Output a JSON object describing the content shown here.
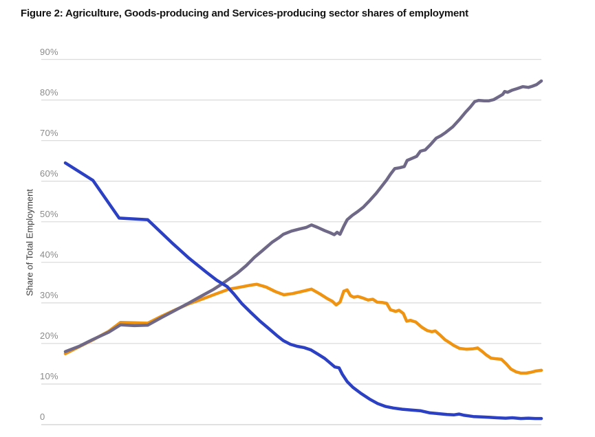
{
  "page": {
    "title": "Figure 2: Agriculture, Goods-producing and Services-producing sector shares of employment"
  },
  "colors": {
    "background": "#ffffff",
    "title_text": "#131313",
    "axis_title_text": "#3b3b3b",
    "tick_label_text": "#8a8a8a",
    "gridline": "#dcdcdc",
    "baseline": "#cfcfcf",
    "agriculture_line": "#2b40c2",
    "goods_line": "#ef9412",
    "services_line": "#6f6887"
  },
  "chart_data": {
    "type": "line",
    "title": "Figure 2: Agriculture, Goods-producing and Services-producing sector shares of employment",
    "xlabel": "",
    "ylabel": "Share of Total Employment",
    "ylim": [
      0,
      90
    ],
    "ytick_values": [
      90,
      80,
      70,
      60,
      50,
      40,
      30,
      20,
      10,
      0
    ],
    "ytick_labels": [
      "90%",
      "80%",
      "70%",
      "60%",
      "50%",
      "40%",
      "30%",
      "20%",
      "10%",
      "0"
    ],
    "x_tick_labels": [],
    "grid": "horizontal-only",
    "legend_position": "none",
    "x_unit": "fraction-of-timespan (no x-axis labels shown in figure)",
    "y_unit": "percent share of total employment",
    "series": [
      {
        "name": "Agriculture",
        "color": "#2b40c2",
        "start_value_pct": 64.5,
        "end_value_pct": 1.5,
        "points": [
          [
            0,
            64.5
          ],
          [
            0.058,
            60.2
          ],
          [
            0.113,
            50.9
          ],
          [
            0.173,
            50.5
          ],
          [
            0.224,
            44.8
          ],
          [
            0.26,
            41
          ],
          [
            0.296,
            37.6
          ],
          [
            0.318,
            35.6
          ],
          [
            0.34,
            34
          ],
          [
            0.354,
            32.2
          ],
          [
            0.371,
            29.8
          ],
          [
            0.39,
            27.6
          ],
          [
            0.409,
            25.5
          ],
          [
            0.426,
            23.8
          ],
          [
            0.444,
            22
          ],
          [
            0.458,
            20.7
          ],
          [
            0.473,
            19.8
          ],
          [
            0.487,
            19.3
          ],
          [
            0.501,
            19
          ],
          [
            0.516,
            18.4
          ],
          [
            0.53,
            17.4
          ],
          [
            0.545,
            16.3
          ],
          [
            0.556,
            15.2
          ],
          [
            0.566,
            14.2
          ],
          [
            0.575,
            14
          ],
          [
            0.582,
            12.4
          ],
          [
            0.592,
            10.6
          ],
          [
            0.604,
            9.2
          ],
          [
            0.621,
            7.7
          ],
          [
            0.639,
            6.3
          ],
          [
            0.656,
            5.2
          ],
          [
            0.672,
            4.5
          ],
          [
            0.689,
            4.1
          ],
          [
            0.708,
            3.8
          ],
          [
            0.727,
            3.6
          ],
          [
            0.747,
            3.4
          ],
          [
            0.766,
            2.9
          ],
          [
            0.785,
            2.7
          ],
          [
            0.802,
            2.5
          ],
          [
            0.816,
            2.4
          ],
          [
            0.827,
            2.6
          ],
          [
            0.838,
            2.3
          ],
          [
            0.857,
            2
          ],
          [
            0.874,
            1.9
          ],
          [
            0.892,
            1.8
          ],
          [
            0.906,
            1.7
          ],
          [
            0.925,
            1.6
          ],
          [
            0.939,
            1.7
          ],
          [
            0.957,
            1.5
          ],
          [
            0.973,
            1.6
          ],
          [
            0.987,
            1.5
          ],
          [
            1,
            1.5
          ]
        ]
      },
      {
        "name": "Goods-producing",
        "color": "#ef9412",
        "start_value_pct": 17.5,
        "end_value_pct": 13.4,
        "points": [
          [
            0,
            17.5
          ],
          [
            0.029,
            19.2
          ],
          [
            0.058,
            20.9
          ],
          [
            0.091,
            23
          ],
          [
            0.116,
            25.2
          ],
          [
            0.145,
            25.1
          ],
          [
            0.173,
            25
          ],
          [
            0.202,
            26.7
          ],
          [
            0.231,
            28.3
          ],
          [
            0.26,
            29.8
          ],
          [
            0.289,
            31
          ],
          [
            0.318,
            32.3
          ],
          [
            0.344,
            33.4
          ],
          [
            0.368,
            33.9
          ],
          [
            0.386,
            34.3
          ],
          [
            0.402,
            34.6
          ],
          [
            0.422,
            33.9
          ],
          [
            0.441,
            32.8
          ],
          [
            0.459,
            32
          ],
          [
            0.477,
            32.3
          ],
          [
            0.496,
            32.8
          ],
          [
            0.517,
            33.4
          ],
          [
            0.535,
            32.2
          ],
          [
            0.551,
            31
          ],
          [
            0.561,
            30.4
          ],
          [
            0.569,
            29.5
          ],
          [
            0.577,
            30.2
          ],
          [
            0.585,
            32.9
          ],
          [
            0.592,
            33.2
          ],
          [
            0.599,
            31.8
          ],
          [
            0.606,
            31.4
          ],
          [
            0.614,
            31.6
          ],
          [
            0.625,
            31.2
          ],
          [
            0.636,
            30.7
          ],
          [
            0.646,
            30.9
          ],
          [
            0.655,
            30.2
          ],
          [
            0.665,
            30.1
          ],
          [
            0.675,
            29.9
          ],
          [
            0.683,
            28.3
          ],
          [
            0.694,
            27.9
          ],
          [
            0.701,
            28.2
          ],
          [
            0.71,
            27.4
          ],
          [
            0.717,
            25.5
          ],
          [
            0.725,
            25.7
          ],
          [
            0.736,
            25.3
          ],
          [
            0.749,
            24
          ],
          [
            0.76,
            23.2
          ],
          [
            0.77,
            22.9
          ],
          [
            0.777,
            23.1
          ],
          [
            0.788,
            22
          ],
          [
            0.798,
            20.9
          ],
          [
            0.806,
            20.3
          ],
          [
            0.816,
            19.5
          ],
          [
            0.828,
            18.8
          ],
          [
            0.842,
            18.6
          ],
          [
            0.857,
            18.7
          ],
          [
            0.866,
            18.9
          ],
          [
            0.876,
            18
          ],
          [
            0.884,
            17.2
          ],
          [
            0.894,
            16.4
          ],
          [
            0.906,
            16.2
          ],
          [
            0.916,
            16.1
          ],
          [
            0.926,
            15
          ],
          [
            0.936,
            13.7
          ],
          [
            0.947,
            13
          ],
          [
            0.957,
            12.7
          ],
          [
            0.968,
            12.7
          ],
          [
            0.978,
            12.9
          ],
          [
            0.988,
            13.2
          ],
          [
            1,
            13.4
          ]
        ]
      },
      {
        "name": "Services-producing",
        "color": "#6f6887",
        "start_value_pct": 18.0,
        "end_value_pct": 84.7,
        "points": [
          [
            0,
            18
          ],
          [
            0.029,
            19.3
          ],
          [
            0.058,
            21
          ],
          [
            0.091,
            22.8
          ],
          [
            0.116,
            24.6
          ],
          [
            0.145,
            24.4
          ],
          [
            0.173,
            24.5
          ],
          [
            0.202,
            26.4
          ],
          [
            0.231,
            28.2
          ],
          [
            0.26,
            30
          ],
          [
            0.289,
            31.9
          ],
          [
            0.311,
            33.3
          ],
          [
            0.328,
            34.6
          ],
          [
            0.344,
            35.9
          ],
          [
            0.361,
            37.3
          ],
          [
            0.38,
            39.2
          ],
          [
            0.397,
            41.2
          ],
          [
            0.415,
            43
          ],
          [
            0.434,
            44.9
          ],
          [
            0.448,
            46
          ],
          [
            0.458,
            46.9
          ],
          [
            0.475,
            47.7
          ],
          [
            0.491,
            48.2
          ],
          [
            0.506,
            48.6
          ],
          [
            0.517,
            49.2
          ],
          [
            0.53,
            48.6
          ],
          [
            0.545,
            47.8
          ],
          [
            0.556,
            47.3
          ],
          [
            0.565,
            46.8
          ],
          [
            0.571,
            47.4
          ],
          [
            0.577,
            46.9
          ],
          [
            0.585,
            48.9
          ],
          [
            0.592,
            50.5
          ],
          [
            0.603,
            51.6
          ],
          [
            0.614,
            52.5
          ],
          [
            0.626,
            53.6
          ],
          [
            0.64,
            55.3
          ],
          [
            0.653,
            57
          ],
          [
            0.665,
            58.8
          ],
          [
            0.675,
            60.3
          ],
          [
            0.683,
            61.7
          ],
          [
            0.692,
            63.1
          ],
          [
            0.702,
            63.3
          ],
          [
            0.712,
            63.6
          ],
          [
            0.718,
            65.1
          ],
          [
            0.728,
            65.6
          ],
          [
            0.738,
            66.1
          ],
          [
            0.746,
            67.4
          ],
          [
            0.756,
            67.7
          ],
          [
            0.767,
            69
          ],
          [
            0.779,
            70.6
          ],
          [
            0.789,
            71.2
          ],
          [
            0.799,
            72
          ],
          [
            0.814,
            73.4
          ],
          [
            0.828,
            75.2
          ],
          [
            0.84,
            76.9
          ],
          [
            0.851,
            78.3
          ],
          [
            0.86,
            79.6
          ],
          [
            0.868,
            79.9
          ],
          [
            0.88,
            79.8
          ],
          [
            0.89,
            79.8
          ],
          [
            0.9,
            80.1
          ],
          [
            0.912,
            80.9
          ],
          [
            0.919,
            81.4
          ],
          [
            0.923,
            82.1
          ],
          [
            0.929,
            81.9
          ],
          [
            0.938,
            82.4
          ],
          [
            0.949,
            82.8
          ],
          [
            0.961,
            83.3
          ],
          [
            0.973,
            83.1
          ],
          [
            0.981,
            83.4
          ],
          [
            0.99,
            83.8
          ],
          [
            1,
            84.7
          ]
        ]
      }
    ]
  }
}
